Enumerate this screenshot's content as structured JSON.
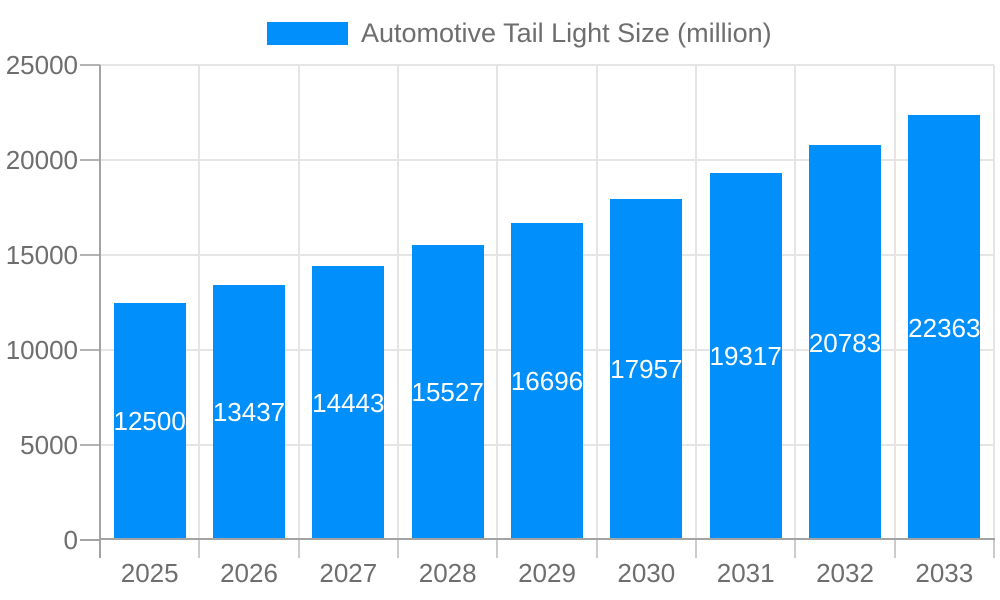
{
  "chart_data": {
    "type": "bar",
    "title": "Automotive Tail Light Size (million)",
    "categories": [
      "2025",
      "2026",
      "2027",
      "2028",
      "2029",
      "2030",
      "2031",
      "2032",
      "2033"
    ],
    "values": [
      12500,
      13437,
      14443,
      15527,
      16696,
      17957,
      19317,
      20783,
      22363
    ],
    "xlabel": "",
    "ylabel": "",
    "ylim": [
      0,
      25000
    ],
    "y_ticks": [
      0,
      5000,
      10000,
      15000,
      20000,
      25000
    ],
    "grid": "on",
    "legend_position": "top-center",
    "bar_labels_position": "inside-center",
    "colors": {
      "bar": "#008FFB",
      "bar_label": "#ffffff",
      "axis_text": "#6e6e6e",
      "legend_text": "#6e6e6e",
      "axis_line": "#a3a3a3",
      "grid_line": "#e5e5e5",
      "tick_x": "#cccccc",
      "tick_y": "#b3b3b3"
    }
  }
}
